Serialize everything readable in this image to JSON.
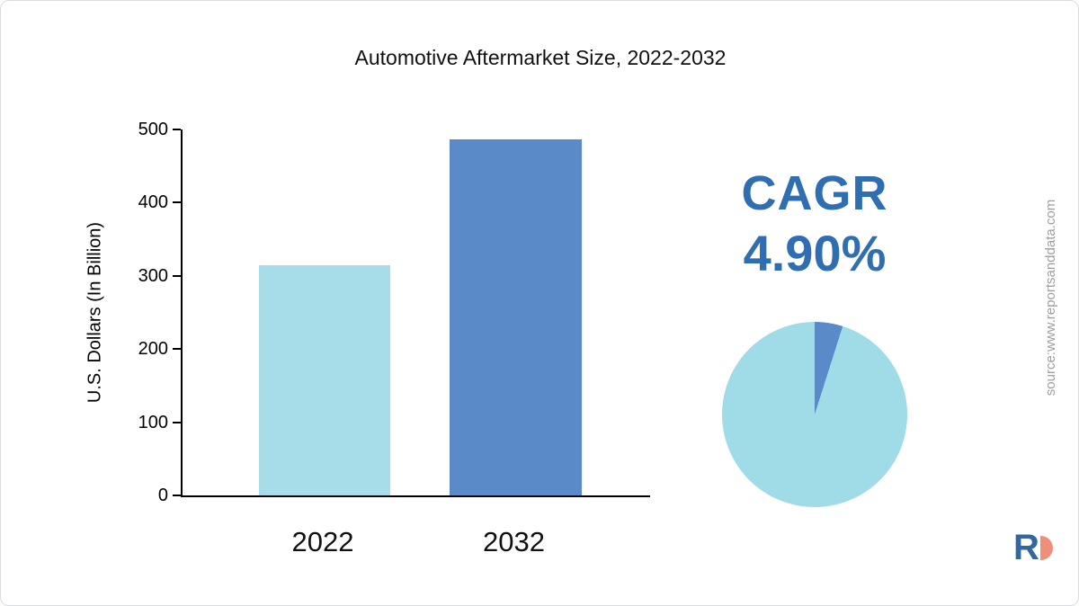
{
  "chart_data": {
    "type": "bar",
    "title": "Automotive Aftermarket Size, 2022-2032",
    "categories": [
      "2022",
      "2032"
    ],
    "values": [
      315,
      487
    ],
    "xlabel": "",
    "ylabel": "U.S. Dollars (In Billion)",
    "ylim": [
      0,
      500
    ],
    "yticks": [
      0,
      100,
      200,
      300,
      400,
      500
    ],
    "bar_colors": [
      "#a6dde9",
      "#5b8ac9"
    ],
    "grid": false,
    "legend": "none"
  },
  "cagr": {
    "label": "CAGR",
    "value": "4.90%",
    "percent": 4.9
  },
  "pie": {
    "slice_percent": 4.9,
    "main_color": "#a0dbe8",
    "slice_color": "#5b8ac9"
  },
  "source": "source:www.reportsanddata.com",
  "logo": {
    "letter": "R"
  },
  "colors": {
    "accent_blue": "#2f6eb0",
    "logo_orange": "#ef8f79",
    "axis_black": "#000000",
    "source_gray": "#9e9e9e"
  }
}
